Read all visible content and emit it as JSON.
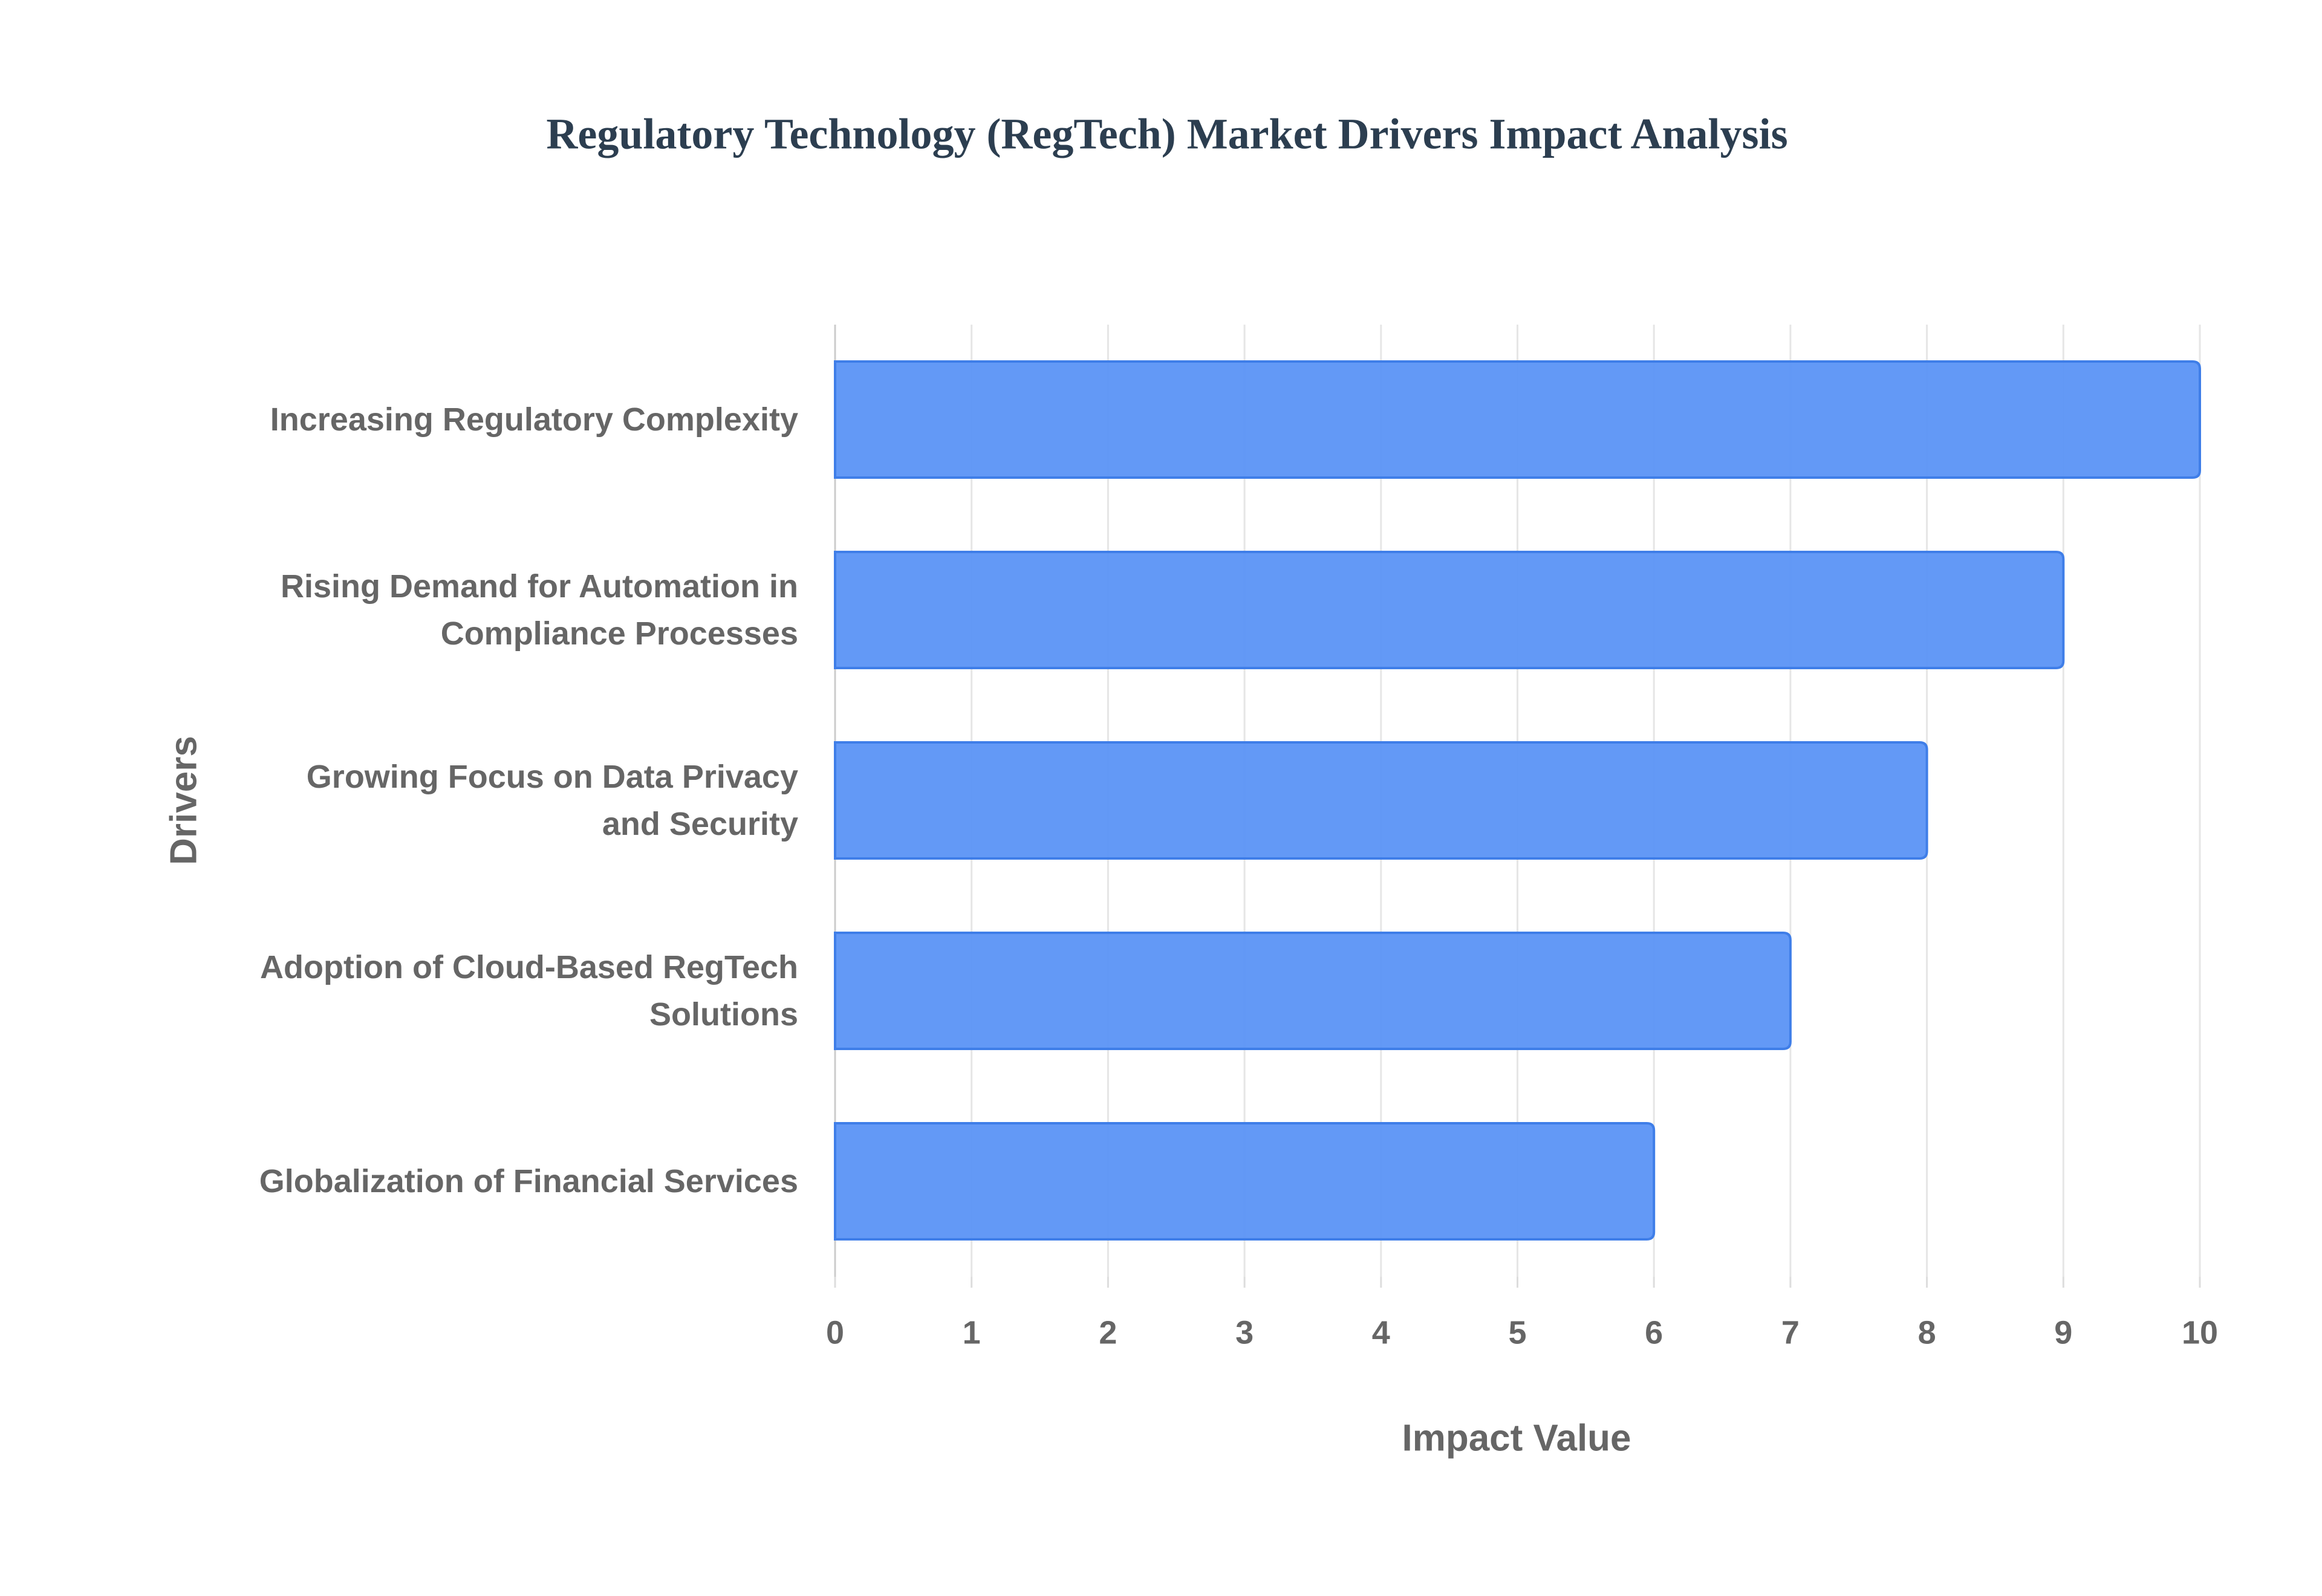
{
  "chart_data": {
    "type": "bar",
    "orientation": "horizontal",
    "title": "Regulatory Technology (RegTech) Market Drivers Impact Analysis",
    "x_label": "Impact Value",
    "y_label": "Drivers",
    "categories": [
      "Increasing Regulatory Complexity",
      "Rising Demand for Automation in Compliance Processes",
      "Growing Focus on Data Privacy and Security",
      "Adoption of Cloud-Based RegTech Solutions",
      "Globalization of Financial Services"
    ],
    "values": [
      10,
      9,
      8,
      7,
      6
    ],
    "color": "#5b93f5",
    "xlim": [
      0,
      10
    ],
    "xticks": [
      0,
      1,
      2,
      3,
      4,
      5,
      6,
      7,
      8,
      9,
      10
    ],
    "grid": true
  }
}
